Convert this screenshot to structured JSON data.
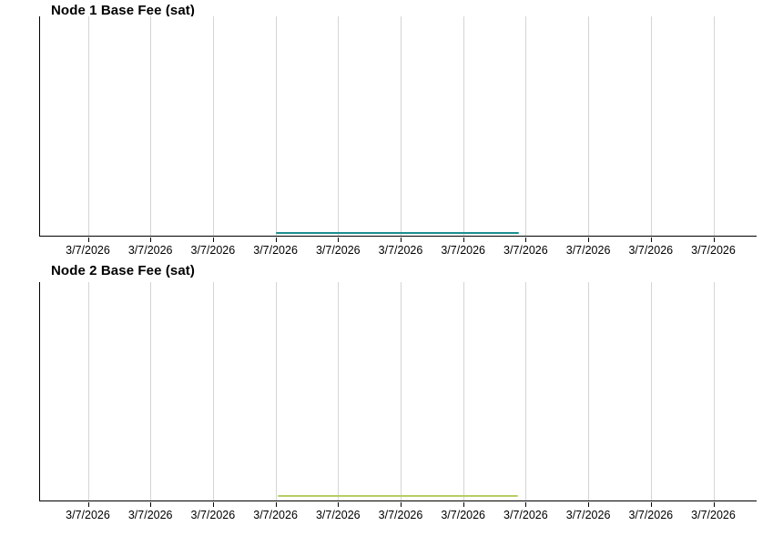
{
  "page": {
    "background_color": "#ffffff"
  },
  "chart_data": [
    {
      "type": "line",
      "title": "Node 1 Base Fee (sat)",
      "xlabel": "",
      "ylabel": "",
      "x_tick_labels": [
        "3/7/2026",
        "3/7/2026",
        "3/7/2026",
        "3/7/2026",
        "3/7/2026",
        "3/7/2026",
        "3/7/2026",
        "3/7/2026",
        "3/7/2026",
        "3/7/2026",
        "3/7/2026"
      ],
      "y_tick_labels": [],
      "y_axis": "unlabeled, no ticks",
      "grid": "vertical gridlines only",
      "legend": "none",
      "line_color": "#1b8f8f",
      "series": [
        {
          "name": "Node 1 Base Fee (sat)",
          "color": "#1b8f8f",
          "shape": "constant flat line just above x-axis",
          "x_start_tick": 3.0,
          "x_end_tick": 6.89,
          "y_fraction_of_plot_height": 0.008
        }
      ]
    },
    {
      "type": "line",
      "title": "Node 2 Base Fee (sat)",
      "xlabel": "",
      "ylabel": "",
      "x_tick_labels": [
        "3/7/2026",
        "3/7/2026",
        "3/7/2026",
        "3/7/2026",
        "3/7/2026",
        "3/7/2026",
        "3/7/2026",
        "3/7/2026",
        "3/7/2026",
        "3/7/2026",
        "3/7/2026"
      ],
      "y_tick_labels": [],
      "y_axis": "unlabeled, no ticks",
      "grid": "vertical gridlines only",
      "legend": "none",
      "line_color": "#b5ce64",
      "series": [
        {
          "name": "Node 2 Base Fee (sat)",
          "color": "#b5ce64",
          "shape": "constant flat line just above x-axis",
          "x_start_tick": 3.03,
          "x_end_tick": 6.88,
          "y_fraction_of_plot_height": 0.015
        }
      ]
    }
  ]
}
